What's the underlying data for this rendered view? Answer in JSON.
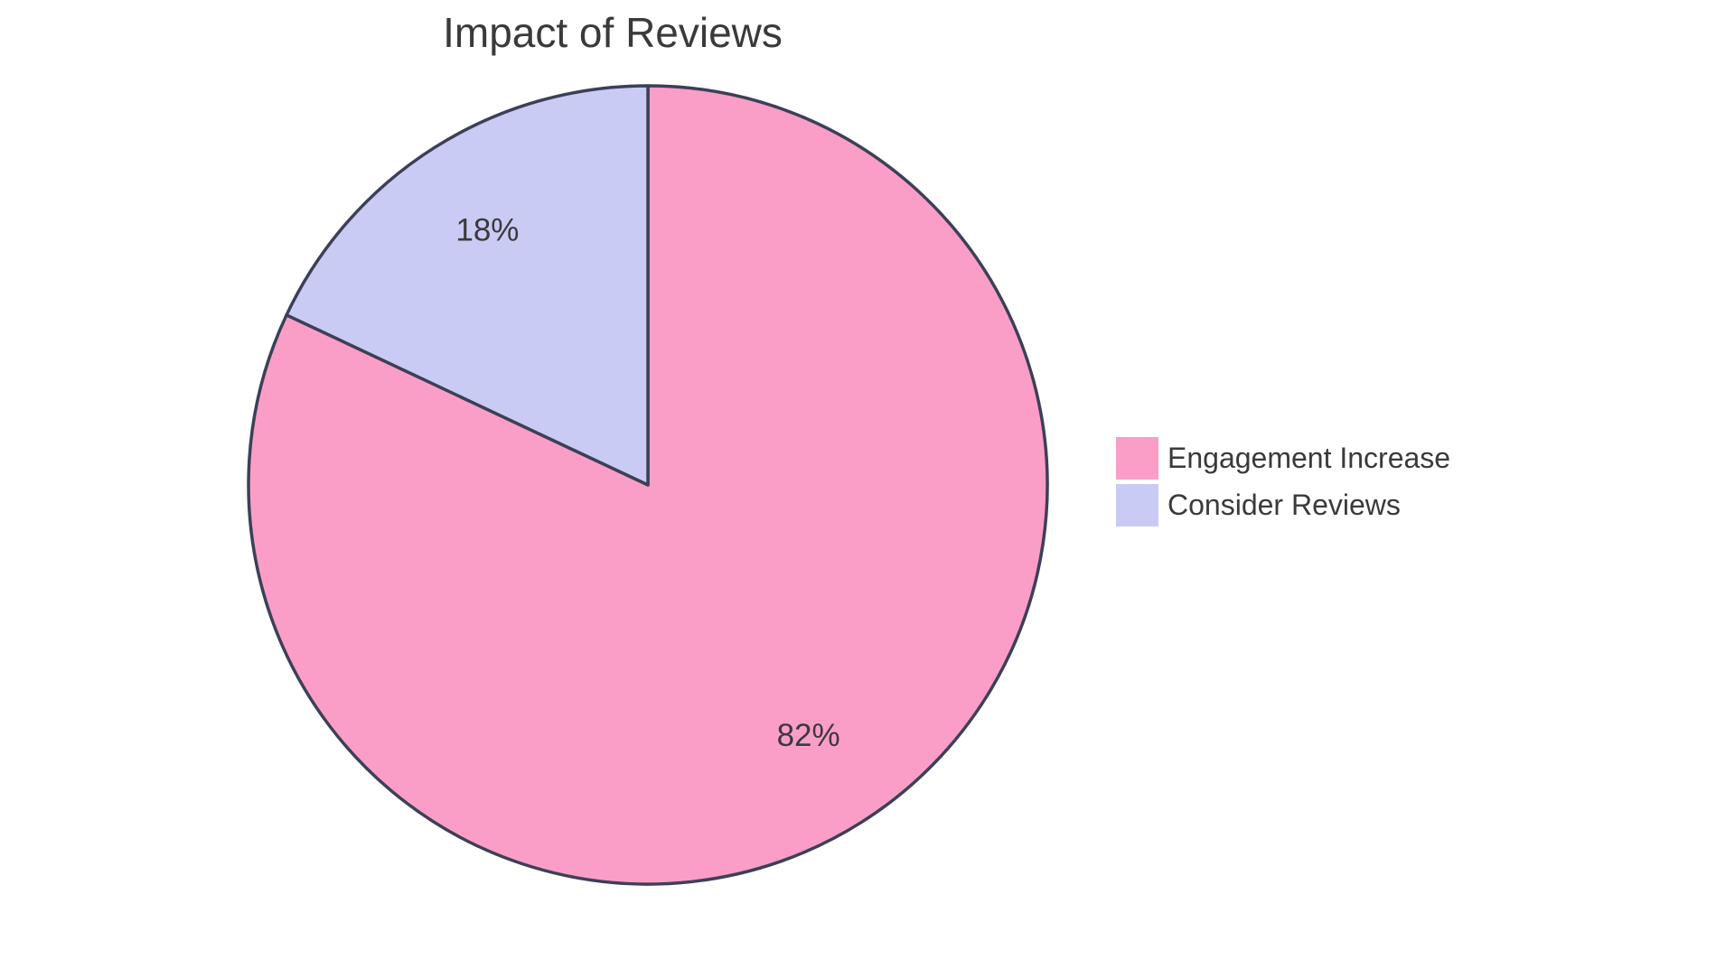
{
  "page": {
    "background_color": "#ffffff"
  },
  "chart_data": {
    "type": "pie",
    "title": "Impact of Reviews",
    "categories": [
      "Engagement Increase",
      "Consider Reviews"
    ],
    "values": [
      82,
      18
    ],
    "slice_labels": [
      "82%",
      "18%"
    ],
    "colors": [
      "#FA9EC8",
      "#CACBF5"
    ],
    "border_color": "#3C4056",
    "border_width": 3.5,
    "text_color": "#3A3A3A",
    "start_angle_deg": 0,
    "direction": "clockwise",
    "legend_position": "right",
    "legend": [
      {
        "label": "Engagement Increase",
        "color": "#FA9EC8"
      },
      {
        "label": "Consider Reviews",
        "color": "#CACBF5"
      }
    ]
  }
}
